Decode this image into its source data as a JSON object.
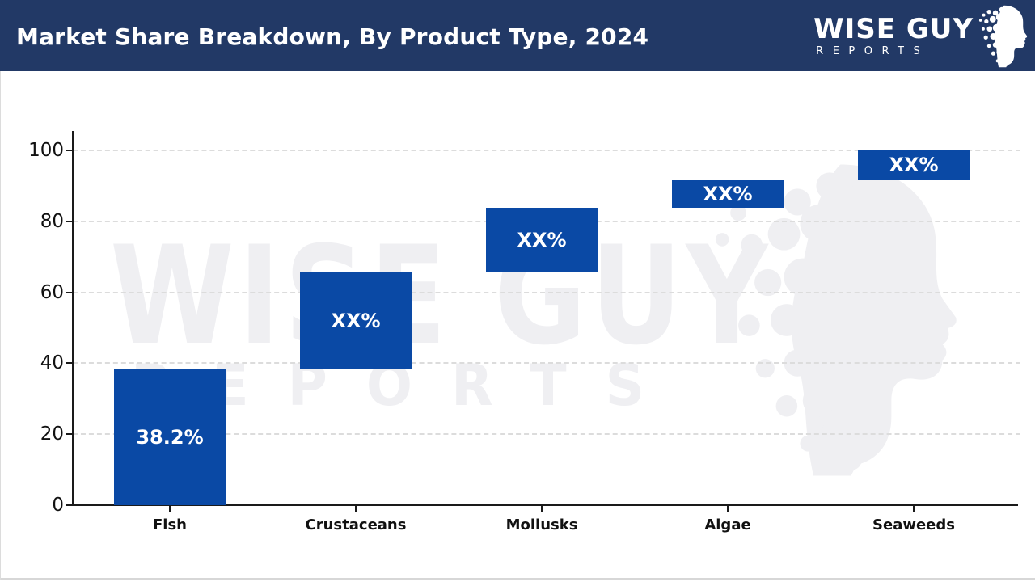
{
  "header": {
    "title": "Market Share Breakdown, By Product Type, 2024",
    "logo": {
      "line1": "WISE GUY",
      "line2": "REPORTS"
    }
  },
  "watermark": {
    "line1": "WISE GUY",
    "line2": "REPORTS"
  },
  "colors": {
    "header_bg": "#223966",
    "bar": "#0A49A5",
    "bar_label": "#FFFFFF",
    "axis": "#1A1A1A",
    "grid": "#DCDCDC",
    "watermark": "#EFEFF2",
    "tick_text": "#111111"
  },
  "chart_data": {
    "type": "bar",
    "subtype": "waterfall",
    "title": "Market Share Breakdown, By Product Type, 2024",
    "xlabel": "",
    "ylabel": "",
    "categories": [
      "Fish",
      "Crustaceans",
      "Mollusks",
      "Algae",
      "Seaweeds"
    ],
    "segments": [
      {
        "category": "Fish",
        "start": 0,
        "end": 38.2,
        "label": "38.2%"
      },
      {
        "category": "Crustaceans",
        "start": 38.2,
        "end": 65.7,
        "label": "XX%"
      },
      {
        "category": "Mollusks",
        "start": 65.7,
        "end": 83.8,
        "label": "XX%"
      },
      {
        "category": "Algae",
        "start": 83.8,
        "end": 91.6,
        "label": "XX%"
      },
      {
        "category": "Seaweeds",
        "start": 91.6,
        "end": 100,
        "label": "XX%"
      }
    ],
    "ylim": [
      0,
      100
    ],
    "yticks": [
      0,
      20,
      40,
      60,
      80,
      100
    ],
    "grid": "horizontal-dashed",
    "legend": "none"
  }
}
